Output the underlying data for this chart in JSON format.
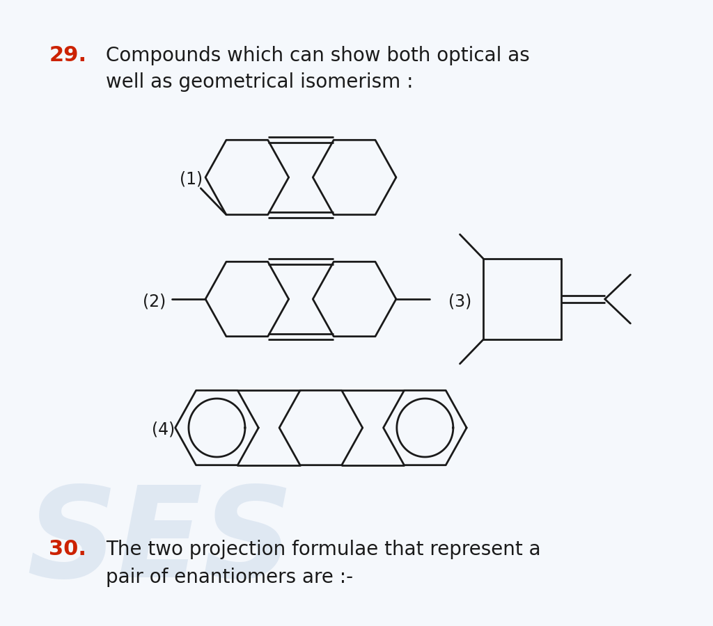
{
  "bg_color": "#f5f8fc",
  "text_color": "#1a1a1a",
  "number_color_29": "#cc2200",
  "number_color_30": "#cc2200",
  "line_color": "#1a1a1a",
  "line_width": 2.0,
  "title_29": "29.",
  "text_29_line1": "Compounds which can show both optical as",
  "text_29_line2": "well as geometrical isomerism :",
  "title_30": "30.",
  "text_30_line1": "The two projection formulae that represent a",
  "text_30_line2": "pair of enantiomers are :-",
  "label_1": "(1)",
  "label_2": "(2)",
  "label_3": "(3)",
  "label_4": "(4)"
}
